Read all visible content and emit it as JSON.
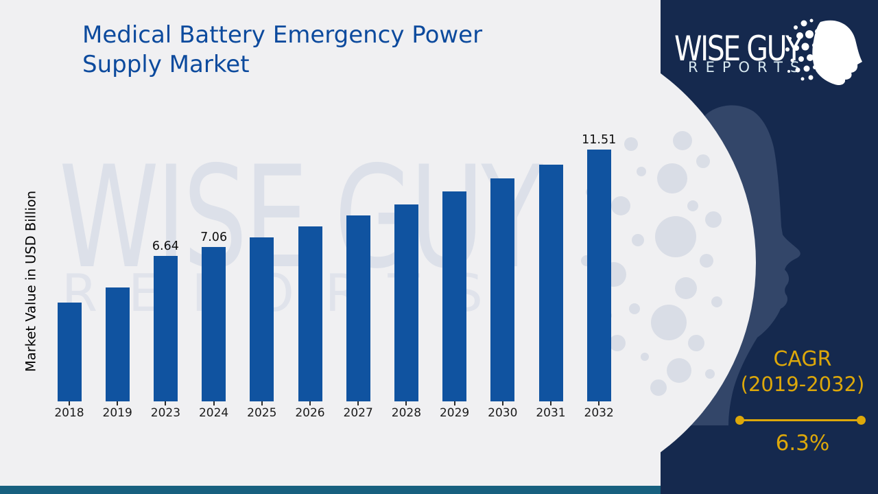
{
  "title": {
    "line1": "Medical Battery Emergency Power",
    "line2": "Supply Market"
  },
  "watermark": {
    "line1": "WISE GUY",
    "line2": "REPORTS"
  },
  "logo": {
    "line1": "WISE GUY",
    "line2": "REPORTS"
  },
  "cagr": {
    "heading": "CAGR",
    "range": "(2019-2032)",
    "value": "6.3%"
  },
  "chart_data": {
    "type": "bar",
    "title": "Medical Battery Emergency Power Supply Market",
    "xlabel": "",
    "ylabel": "Market Value in USD Billion",
    "unit": "USD Billion",
    "grid": false,
    "categories": [
      "2018",
      "2019",
      "2023",
      "2024",
      "2025",
      "2026",
      "2027",
      "2028",
      "2029",
      "2030",
      "2031",
      "2032"
    ],
    "values": [
      4.5,
      5.2,
      6.64,
      7.06,
      7.5,
      8.0,
      8.5,
      9.0,
      9.6,
      10.2,
      10.8,
      11.51
    ],
    "value_labels": [
      "",
      "",
      "6.64",
      "7.06",
      "",
      "",
      "",
      "",
      "",
      "",
      "",
      "11.51"
    ],
    "ylim": [
      0,
      12.5
    ]
  },
  "colors": {
    "background": "#f0f0f2",
    "bar": "#1053a0",
    "title": "#0c4a9d",
    "panel": "#15294e",
    "silhouette": "#334669",
    "gold": "#dda80a",
    "teal_strip": "#17607f",
    "watermark": "#dce0e9"
  }
}
